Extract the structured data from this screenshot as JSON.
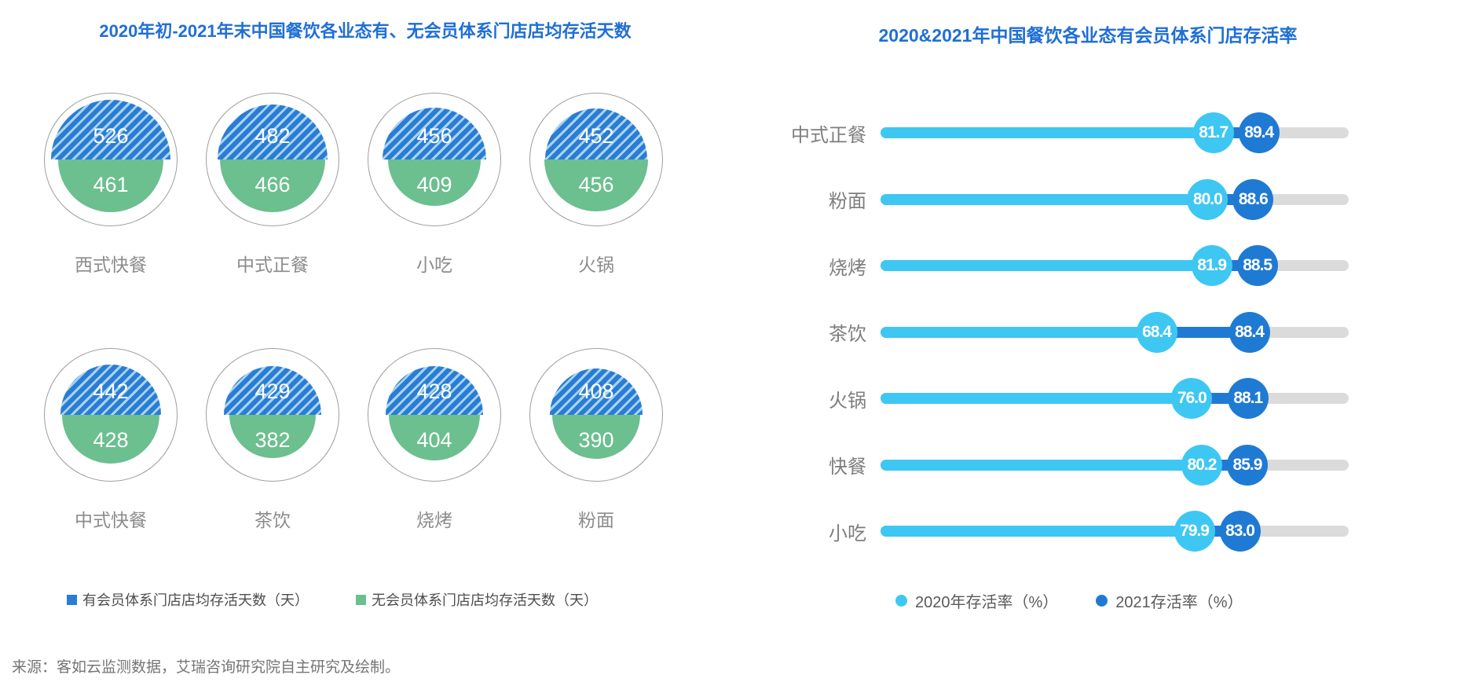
{
  "source": "来源：客如云监测数据，艾瑞咨询研究院自主研究及绘制。",
  "chart_data": [
    {
      "type": "pie",
      "subtype": "paired-half-circles",
      "title": "2020年初-2021年末中国餐饮各业态有、无会员体系门店店均存活天数",
      "unit": "天",
      "max_days": 526,
      "categories": [
        "西式快餐",
        "中式正餐",
        "小吃",
        "火锅",
        "中式快餐",
        "茶饮",
        "烧烤",
        "粉面"
      ],
      "series": [
        {
          "name": "有会员体系门店店均存活天数（天）",
          "color": "#2B7CD4",
          "decal_stripe": "#A6D4F2",
          "values": [
            526,
            482,
            456,
            452,
            442,
            429,
            428,
            408
          ]
        },
        {
          "name": "无会员体系门店店均存活天数（天）",
          "color": "#6CBF8F",
          "values": [
            461,
            466,
            409,
            456,
            428,
            382,
            404,
            390
          ]
        }
      ],
      "legend_position": "bottom",
      "ring_color": "#9E9E9E"
    },
    {
      "type": "bar",
      "subtype": "dumbbell",
      "title": "2020&2021年中国餐饮各业态有会员体系门店存活率",
      "unit": "%",
      "xlim": [
        0,
        110
      ],
      "categories": [
        "中式正餐",
        "粉面",
        "烧烤",
        "茶饮",
        "火锅",
        "快餐",
        "小吃"
      ],
      "series": [
        {
          "name": "2020年存活率（%）",
          "color": "#3EC7F2",
          "values": [
            81.7,
            80.0,
            81.9,
            68.4,
            76.0,
            80.2,
            79.9
          ]
        },
        {
          "name": "2021存活率（%）",
          "color": "#1F7AD4",
          "values": [
            89.4,
            88.6,
            88.5,
            88.4,
            88.1,
            85.9,
            83.0
          ]
        }
      ],
      "legend_position": "bottom",
      "track_color": "#DBDBDB"
    }
  ],
  "colors": {
    "title": "#1F6FD6",
    "category_label": "#8C8C8C",
    "row_label": "#7E7E7E"
  }
}
